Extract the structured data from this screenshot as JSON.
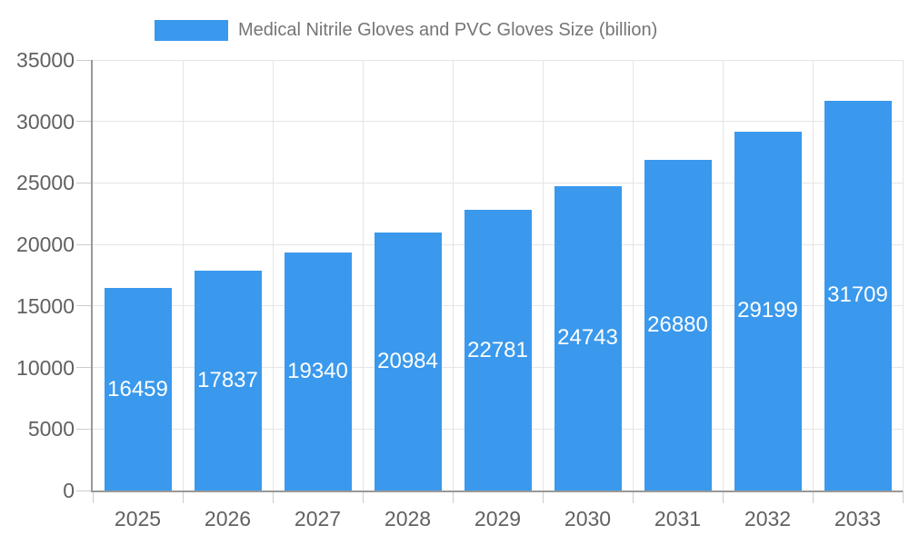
{
  "chart_data": {
    "type": "bar",
    "title": "Medical Nitrile Gloves and PVC Gloves Size (billion)",
    "categories": [
      "2025",
      "2026",
      "2027",
      "2028",
      "2029",
      "2030",
      "2031",
      "2032",
      "2033"
    ],
    "values": [
      16459,
      17837,
      19340,
      20984,
      22781,
      24743,
      26880,
      29199,
      31709
    ],
    "series": [
      {
        "name": "Medical Nitrile Gloves and PVC Gloves Size (billion)",
        "values": [
          16459,
          17837,
          19340,
          20984,
          22781,
          24743,
          26880,
          29199,
          31709
        ]
      }
    ],
    "xlabel": "",
    "ylabel": "",
    "ylim": [
      0,
      35000
    ],
    "yticks": [
      0,
      5000,
      10000,
      15000,
      20000,
      25000,
      30000,
      35000
    ],
    "grid": true,
    "legend_position": "top-center",
    "bar_label_position": "inside-middle",
    "colors": {
      "bar": "#3A99EC",
      "bar_label": "#FFFFFF",
      "axis_label": "#616161",
      "legend_text": "#757575",
      "gridline": "#E5E5E5",
      "axis_line": "#999999",
      "tick": "#CCCCCC"
    }
  }
}
